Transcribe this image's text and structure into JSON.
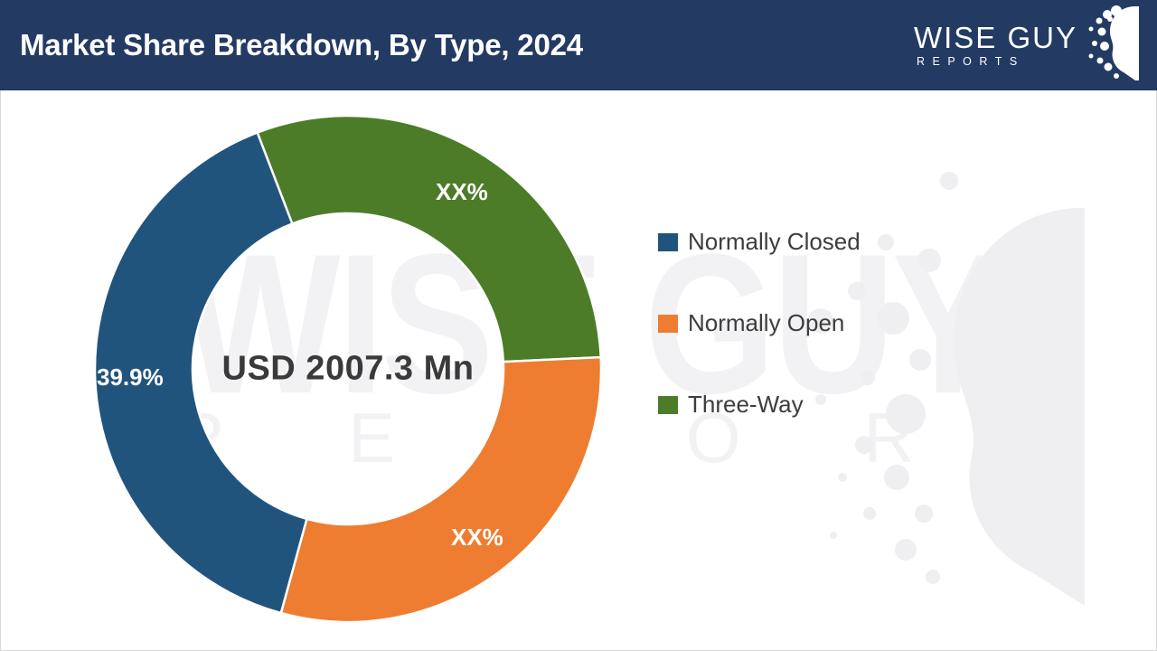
{
  "header": {
    "title": "Market Share Breakdown, By Type, 2024",
    "logo": {
      "line1": "WISE GUY",
      "line2": "REPORTS"
    }
  },
  "chart_data": {
    "type": "pie",
    "subtype": "donut",
    "title": "Market Share Breakdown, By Type, 2024",
    "center_label": "USD 2007.3 Mn",
    "start_angle_deg": -21,
    "direction": "clockwise",
    "outer_radius_px": 280,
    "inner_radius_px": 172,
    "legend_position": "right",
    "segments": [
      {
        "label": "Three-Way",
        "display_value": "XX%",
        "percent": 30.1,
        "color": "#4C7C28"
      },
      {
        "label": "Normally Open",
        "display_value": "XX%",
        "percent": 30.0,
        "color": "#EE7D31"
      },
      {
        "label": "Normally Closed",
        "display_value": "39.9%",
        "percent": 39.9,
        "color": "#21547D"
      }
    ]
  },
  "legend": {
    "items": [
      {
        "label": "Normally Closed",
        "color": "#21547D"
      },
      {
        "label": "Normally Open",
        "color": "#EE7D31"
      },
      {
        "label": "Three-Way",
        "color": "#4C7C28"
      }
    ]
  },
  "watermark": {
    "line1": "WISE GUY",
    "line2": "R E P O R T S"
  },
  "colors": {
    "header_bg": "#233A63",
    "slice_border": "#FFFFFF",
    "center_text": "#3A3A3A",
    "legend_text": "#3D3D3D",
    "watermark": "#F2F2F5",
    "frame_border": "#D9D9D9"
  }
}
